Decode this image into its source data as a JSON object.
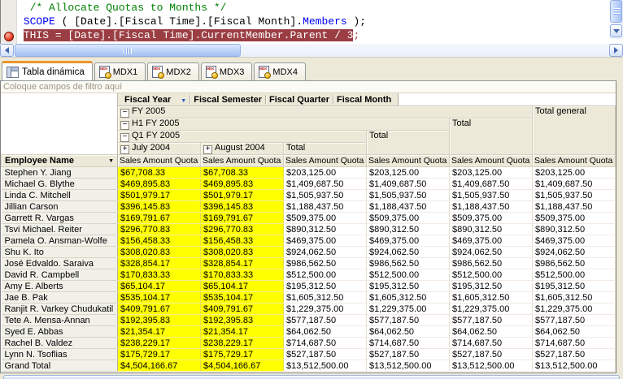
{
  "code": {
    "lines": [
      {
        "breakpoint": false,
        "tokens": [
          {
            "t": "  /* Allocate Quotas to Months */",
            "c": "comment"
          }
        ]
      },
      {
        "breakpoint": false,
        "tokens": [
          {
            "t": " ",
            "c": "plain"
          },
          {
            "t": "SCOPE",
            "c": "keyword"
          },
          {
            "t": " ( [Date].[Fiscal Time].[Fiscal Month].",
            "c": "plain"
          },
          {
            "t": "Members",
            "c": "keyword"
          },
          {
            "t": " );",
            "c": "plain"
          }
        ]
      },
      {
        "breakpoint": true,
        "tokens": [
          {
            "t": " ",
            "c": "plain"
          },
          {
            "t": "THIS = [Date].[Fiscal Time].CurrentMember.Parent / 3",
            "c": "exec"
          },
          {
            "t": ";",
            "c": "maroon"
          }
        ]
      }
    ]
  },
  "tabs": [
    {
      "label": "Tabla dinámica",
      "icon": "pivot-table-icon",
      "active": true
    },
    {
      "label": "MDX1",
      "icon": "mdx-document-icon",
      "active": false
    },
    {
      "label": "MDX2",
      "icon": "mdx-document-icon",
      "active": false
    },
    {
      "label": "MDX3",
      "icon": "mdx-document-icon",
      "active": false
    },
    {
      "label": "MDX4",
      "icon": "mdx-document-icon",
      "active": false
    }
  ],
  "icons": {
    "collapse": "−",
    "expand": "+",
    "dropdown": "▼",
    "mdx_badge": "MDX"
  },
  "pivot": {
    "filter_prompt": "Coloque campos de filtro aquí",
    "fields": [
      "Fiscal Year",
      "Fiscal Semester",
      "Fiscal Quarter",
      "Fiscal Month"
    ],
    "row_field": "Employee Name",
    "measure_label": "Sales Amount Quota",
    "groups": {
      "fy": "FY 2005",
      "h1": "H1 FY 2005",
      "q1": "Q1 FY 2005",
      "month1": "July 2004",
      "month2": "August 2004",
      "total": "Total",
      "grand": "Total general"
    },
    "rows": [
      {
        "name": "Stephen Y. Jiang",
        "values": [
          "$67,708.33",
          "$67,708.33",
          "$203,125.00",
          "$203,125.00",
          "$203,125.00",
          "$203,125.00"
        ]
      },
      {
        "name": "Michael G. Blythe",
        "values": [
          "$469,895.83",
          "$469,895.83",
          "$1,409,687.50",
          "$1,409,687.50",
          "$1,409,687.50",
          "$1,409,687.50"
        ]
      },
      {
        "name": "Linda C. Mitchell",
        "values": [
          "$501,979.17",
          "$501,979.17",
          "$1,505,937.50",
          "$1,505,937.50",
          "$1,505,937.50",
          "$1,505,937.50"
        ]
      },
      {
        "name": "Jillian Carson",
        "values": [
          "$396,145.83",
          "$396,145.83",
          "$1,188,437.50",
          "$1,188,437.50",
          "$1,188,437.50",
          "$1,188,437.50"
        ]
      },
      {
        "name": "Garrett R. Vargas",
        "values": [
          "$169,791.67",
          "$169,791.67",
          "$509,375.00",
          "$509,375.00",
          "$509,375.00",
          "$509,375.00"
        ]
      },
      {
        "name": "Tsvi Michael. Reiter",
        "values": [
          "$296,770.83",
          "$296,770.83",
          "$890,312.50",
          "$890,312.50",
          "$890,312.50",
          "$890,312.50"
        ]
      },
      {
        "name": "Pamela O. Ansman-Wolfe",
        "values": [
          "$156,458.33",
          "$156,458.33",
          "$469,375.00",
          "$469,375.00",
          "$469,375.00",
          "$469,375.00"
        ]
      },
      {
        "name": "Shu K. Ito",
        "values": [
          "$308,020.83",
          "$308,020.83",
          "$924,062.50",
          "$924,062.50",
          "$924,062.50",
          "$924,062.50"
        ]
      },
      {
        "name": "José Edvaldo. Saraiva",
        "values": [
          "$328,854.17",
          "$328,854.17",
          "$986,562.50",
          "$986,562.50",
          "$986,562.50",
          "$986,562.50"
        ]
      },
      {
        "name": "David R. Campbell",
        "values": [
          "$170,833.33",
          "$170,833.33",
          "$512,500.00",
          "$512,500.00",
          "$512,500.00",
          "$512,500.00"
        ]
      },
      {
        "name": "Amy E. Alberts",
        "values": [
          "$65,104.17",
          "$65,104.17",
          "$195,312.50",
          "$195,312.50",
          "$195,312.50",
          "$195,312.50"
        ]
      },
      {
        "name": "Jae B. Pak",
        "values": [
          "$535,104.17",
          "$535,104.17",
          "$1,605,312.50",
          "$1,605,312.50",
          "$1,605,312.50",
          "$1,605,312.50"
        ]
      },
      {
        "name": "Ranjit R. Varkey Chudukatil",
        "values": [
          "$409,791.67",
          "$409,791.67",
          "$1,229,375.00",
          "$1,229,375.00",
          "$1,229,375.00",
          "$1,229,375.00"
        ]
      },
      {
        "name": "Tete A. Mensa-Annan",
        "values": [
          "$192,395.83",
          "$192,395.83",
          "$577,187.50",
          "$577,187.50",
          "$577,187.50",
          "$577,187.50"
        ]
      },
      {
        "name": "Syed E. Abbas",
        "values": [
          "$21,354.17",
          "$21,354.17",
          "$64,062.50",
          "$64,062.50",
          "$64,062.50",
          "$64,062.50"
        ]
      },
      {
        "name": "Rachel B. Valdez",
        "values": [
          "$238,229.17",
          "$238,229.17",
          "$714,687.50",
          "$714,687.50",
          "$714,687.50",
          "$714,687.50"
        ]
      },
      {
        "name": "Lynn N. Tsoflias",
        "values": [
          "$175,729.17",
          "$175,729.17",
          "$527,187.50",
          "$527,187.50",
          "$527,187.50",
          "$527,187.50"
        ]
      },
      {
        "name": "Grand Total",
        "values": [
          "$4,504,166.67",
          "$4,504,166.67",
          "$13,512,500.00",
          "$13,512,500.00",
          "$13,512,500.00",
          "$13,512,500.00"
        ]
      }
    ]
  }
}
